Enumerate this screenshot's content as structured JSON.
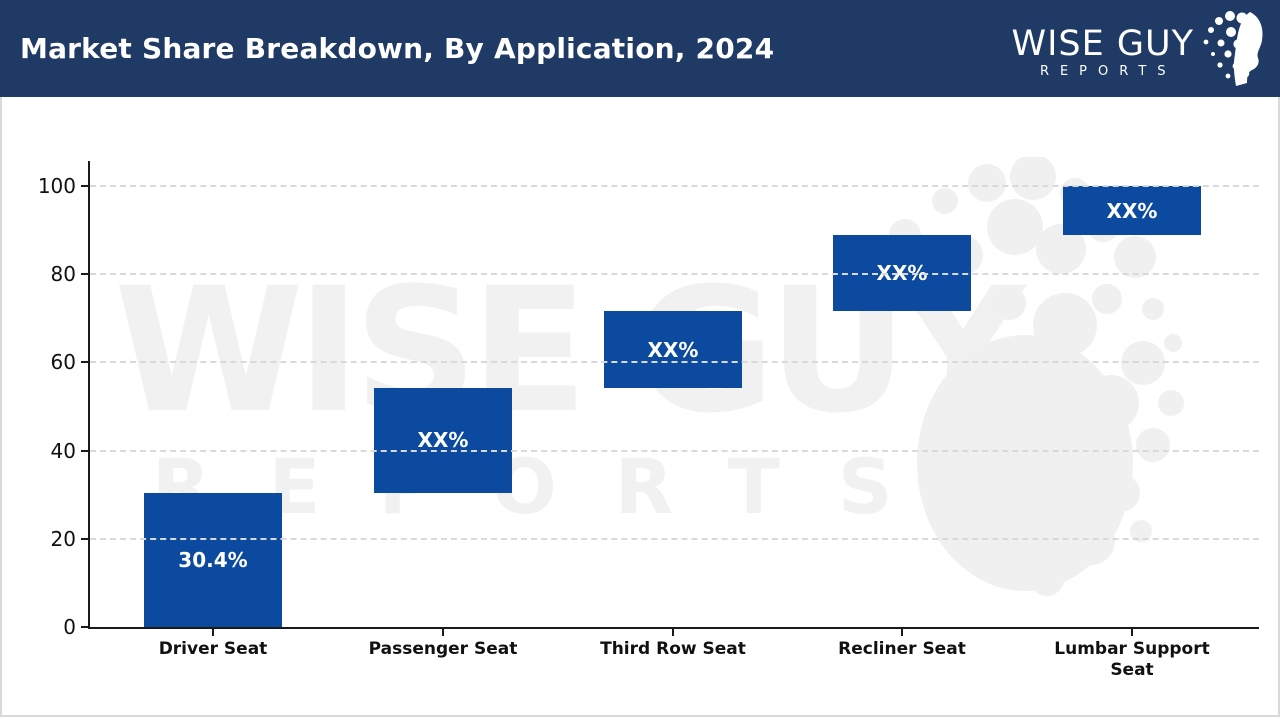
{
  "header": {
    "title": "Market Share Breakdown, By Application, 2024",
    "bg_color": "#203a66",
    "logo": {
      "line1": "WISE GUY",
      "line2": "REPORTS"
    }
  },
  "watermark": {
    "line1": "WISE GUY",
    "line2": "REPORTS"
  },
  "chart_data": {
    "type": "bar",
    "subtype": "waterfall",
    "title": "Market Share Breakdown, By Application, 2024",
    "xlabel": "",
    "ylabel": "",
    "categories": [
      "Driver Seat",
      "Passenger Seat",
      "Third Row Seat",
      "Recliner Seat",
      "Lumbar Support Seat"
    ],
    "series": [
      {
        "name": "Market Share",
        "segments": [
          {
            "category": "Driver Seat",
            "base": 0,
            "top": 30.4,
            "label": "30.4%"
          },
          {
            "category": "Passenger Seat",
            "base": 30.4,
            "top": 54.2,
            "label": "XX%"
          },
          {
            "category": "Third Row Seat",
            "base": 54.2,
            "top": 71.6,
            "label": "XX%"
          },
          {
            "category": "Recliner Seat",
            "base": 71.6,
            "top": 88.8,
            "label": "XX%"
          },
          {
            "category": "Lumbar Support Seat",
            "base": 88.8,
            "top": 100,
            "label": "XX%"
          }
        ]
      }
    ],
    "yticks": [
      0,
      20,
      40,
      60,
      80,
      100
    ],
    "ylim": [
      0,
      105
    ],
    "grid": "horizontal-dashed-over-bars",
    "legend": "none",
    "bar_color": "#0b4a9e",
    "bar_label_color": "#ffffff",
    "grid_color": "#d9d9d9",
    "axis_color": "#1a1a1a",
    "tick_label_color": "#111111"
  }
}
